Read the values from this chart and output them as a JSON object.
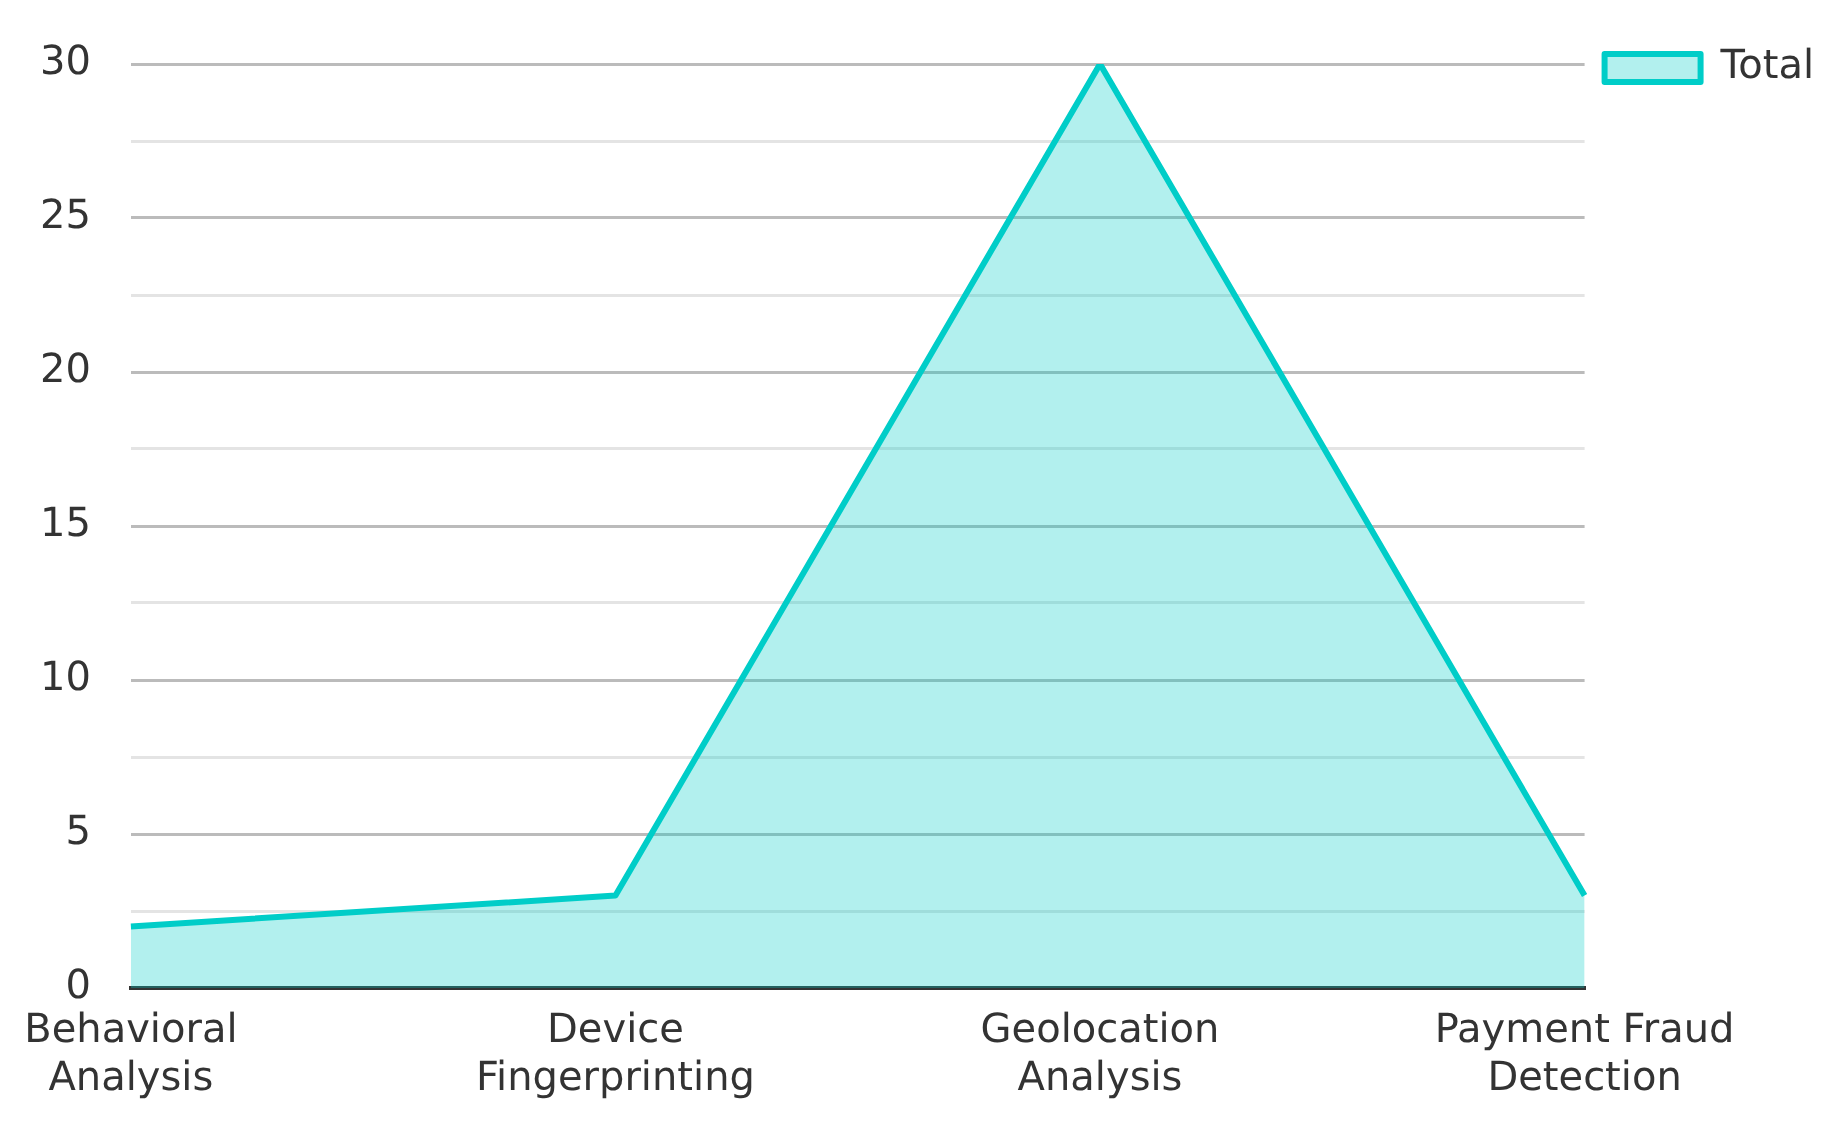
{
  "chart_data": {
    "type": "area",
    "categories": [
      "Behavioral Analysis",
      "Device Fingerprinting",
      "Geolocation Analysis",
      "Payment Fraud Detection"
    ],
    "series": [
      {
        "name": "Total",
        "color": "#00cdc8",
        "values": [
          2,
          3,
          30,
          3
        ]
      }
    ],
    "ylim": [
      0,
      30
    ],
    "yticks": [
      0,
      {
        "value": 2.5,
        "label": null
      },
      5,
      {
        "value": 7.5,
        "label": null
      },
      10,
      {
        "value": 12.5,
        "label": null
      },
      15,
      {
        "value": 17.5,
        "label": null
      },
      20,
      {
        "value": 22.5,
        "label": null
      },
      25,
      {
        "value": 27.5,
        "label": null
      },
      30
    ],
    "grid": "y",
    "legend": "top right",
    "marker": "none"
  }
}
